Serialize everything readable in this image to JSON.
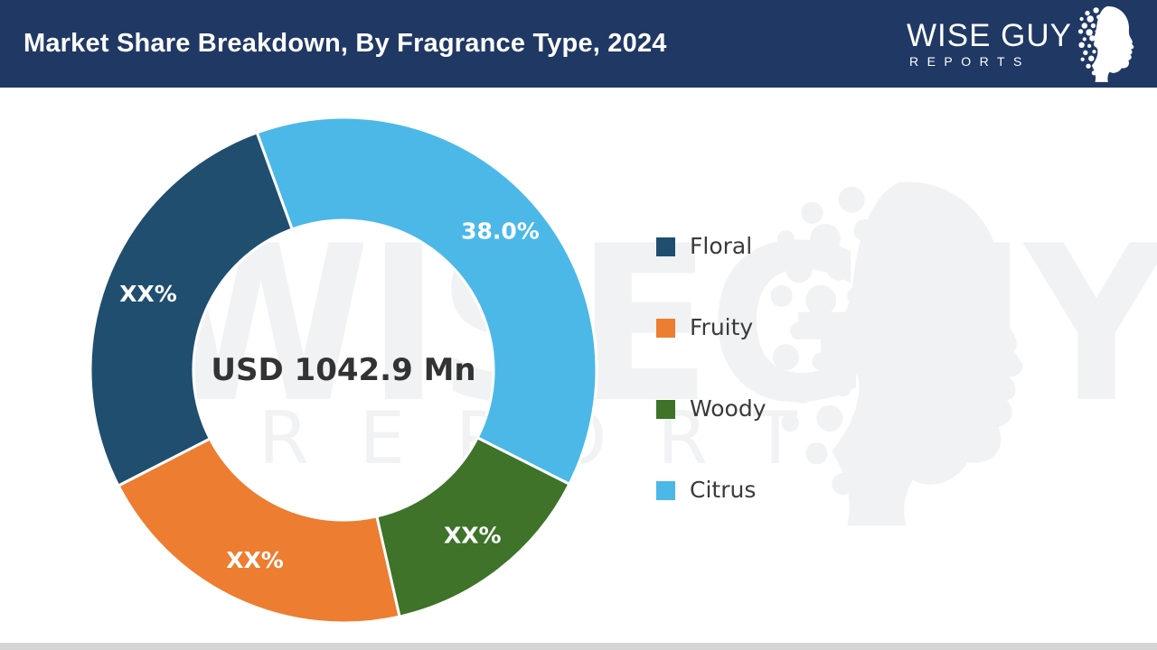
{
  "header": {
    "title": "Market Share Breakdown, By Fragrance Type, 2024",
    "logo": {
      "line1": "WISE GUY",
      "line2": "REPORTS"
    }
  },
  "watermark": {
    "line1": "WISEGUY",
    "line2": "REPORTS"
  },
  "chart_data": {
    "type": "pie",
    "subtype": "donut",
    "title": "Market Share Breakdown, By Fragrance Type, 2024",
    "center_label": "USD 1042.9 Mn",
    "start_angle_deg": -20,
    "direction": "clockwise",
    "inner_radius_ratio": 0.593,
    "segments": [
      {
        "name": "Citrus",
        "value": 38.0,
        "display_label": "38.0%",
        "color": "#4bb8e8"
      },
      {
        "name": "Woody",
        "value": 14.0,
        "display_label": "XX%",
        "color": "#3e7329"
      },
      {
        "name": "Fruity",
        "value": 21.0,
        "display_label": "XX%",
        "color": "#ed7d31"
      },
      {
        "name": "Floral",
        "value": 27.0,
        "display_label": "XX%",
        "color": "#1f4e6f"
      }
    ],
    "legend_position": "right"
  },
  "legend": {
    "items": [
      {
        "label": "Floral",
        "color": "#1f4e6f"
      },
      {
        "label": "Fruity",
        "color": "#ed7d31"
      },
      {
        "label": "Woody",
        "color": "#3e7329"
      },
      {
        "label": "Citrus",
        "color": "#4bb8e8"
      }
    ]
  },
  "colors": {
    "header_bg": "#203864",
    "watermark": "#f1f2f4",
    "center_text": "#333333",
    "legend_text": "#3a3a3a",
    "bottom_bar": "#d5d5d5",
    "slice_gap": "#ffffff"
  }
}
